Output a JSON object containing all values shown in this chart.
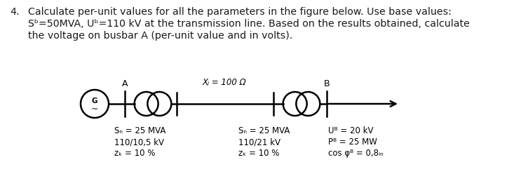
{
  "background_color": "#ffffff",
  "text_color": "#1a1a1a",
  "q_num": "4.",
  "q_line1": "Calculate per-unit values for all the parameters in the figure below. Use base values:",
  "q_line2": "Sᵇ=50MVA, Uᵇ=110 kV at the transmission line. Based on the results obtained, calculate",
  "q_line3": "the voltage on busbar A (per-unit value and in volts).",
  "label_A": "A",
  "label_B": "B",
  "label_G": "G",
  "label_tilde": "~",
  "label_Xl": "Xⱼ = 100 Ω",
  "gen_line1": "Sₙ = 25 MVA",
  "gen_line2": "110/10,5 kV",
  "gen_line3": "zₖ = 10 %",
  "tr2_col1_line1": "Sₙ = 25 MVA",
  "tr2_col1_line2": "110/21 kV",
  "tr2_col1_line3": "zₖ = 10 %",
  "tr2_col2_line1": "Uᴮ = 20 kV",
  "tr2_col2_line2": "Pᴮ = 25 MW",
  "tr2_col2_line3": "cos φᴮ = 0,8ᵢₙ⁤"
}
